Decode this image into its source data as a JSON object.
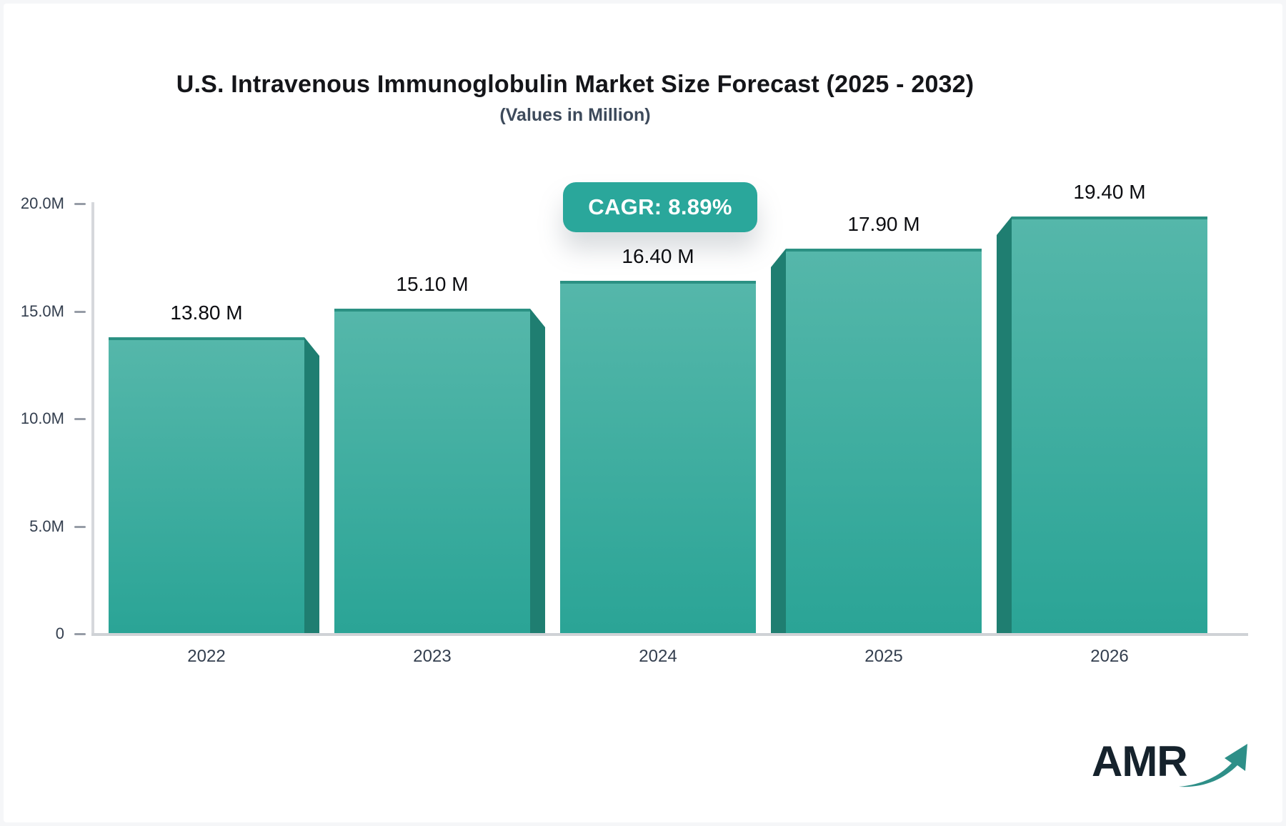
{
  "header": {
    "title": "U.S. Intravenous Immunoglobulin Market Size Forecast (2025 - 2032)",
    "subtitle": "(Values in Million)"
  },
  "badge": {
    "label": "CAGR: 8.89%",
    "bg": "#2aa79b"
  },
  "logo": {
    "text": "AMR",
    "arrow_icon": "growth-arrow-icon"
  },
  "colors": {
    "bar_top": "#55b7aa",
    "bar_bottom": "#2aa496",
    "bar_side": "#1f7e71",
    "bar_top_edge": "#2b9183",
    "axis_line": "#d6d8dc",
    "tick": "#969ca6",
    "axis_text": "#333e4e",
    "value_text": "#0c0d11",
    "logo_arrow": "#2e8f88",
    "logo_text": "#15222c"
  },
  "chart_data": {
    "type": "bar",
    "categories": [
      "2022",
      "2023",
      "2024",
      "2025",
      "2026"
    ],
    "values": [
      13.8,
      15.1,
      16.4,
      17.9,
      19.4
    ],
    "value_labels": [
      "13.80 M",
      "15.10 M",
      "16.40 M",
      "17.90 M",
      "19.40 M"
    ],
    "title": "U.S. Intravenous Immunoglobulin Market Size Forecast (2025 - 2032)",
    "subtitle": "(Values in Million)",
    "annotation": "CAGR: 8.89%",
    "xlabel": "",
    "ylabel": "",
    "ylim": [
      0,
      20
    ],
    "yticks": [
      {
        "value": 20,
        "label": "20.0M"
      },
      {
        "value": 15,
        "label": "15.0M"
      },
      {
        "value": 10,
        "label": "10.0M"
      },
      {
        "value": 5,
        "label": "5.0M"
      },
      {
        "value": 0,
        "label": "0"
      }
    ],
    "grid": false,
    "legend": false,
    "bar_style": "3d-bevel-teal-gradient"
  }
}
